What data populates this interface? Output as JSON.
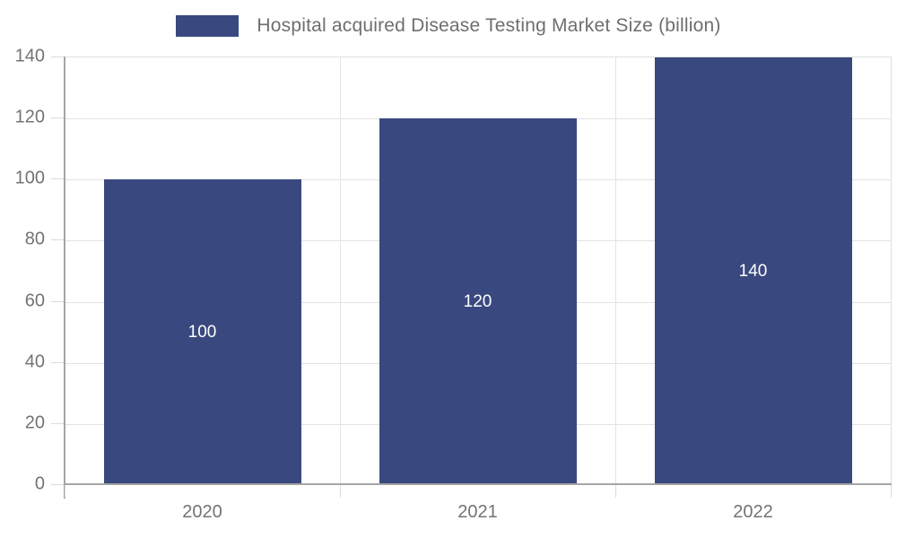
{
  "chart_data": {
    "type": "bar",
    "title": "Hospital acquired Disease Testing Market Size (billion)",
    "categories": [
      "2020",
      "2021",
      "2022"
    ],
    "series": [
      {
        "name": "Hospital acquired Disease Testing Market Size (billion)",
        "values": [
          100,
          120,
          140
        ],
        "data_labels": [
          "100",
          "120",
          "140"
        ]
      }
    ],
    "xlabel": "",
    "ylabel": "",
    "ylim": [
      0,
      140
    ],
    "yticks": [
      0,
      20,
      40,
      60,
      80,
      100,
      120,
      140
    ],
    "grid": true,
    "legend_position": "top-center",
    "colors": {
      "bar": "#39497f",
      "bar_label_text": "#ffffff",
      "legend_text": "#6e6e6e",
      "tick_text": "#737373",
      "gridline": "#e3e3e3",
      "axis_line": "#a5a5a5"
    }
  }
}
